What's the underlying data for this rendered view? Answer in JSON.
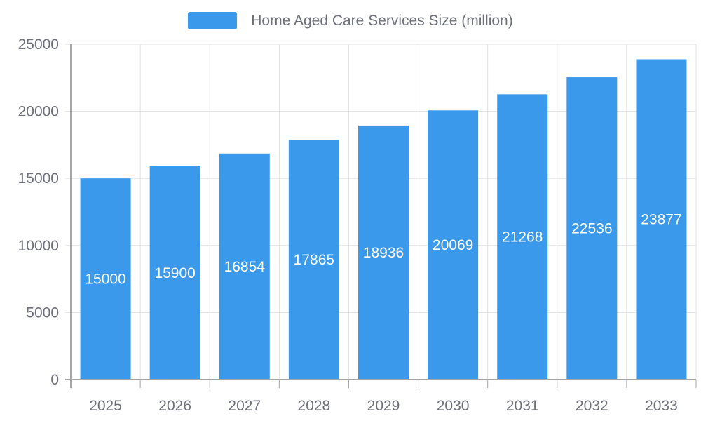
{
  "legend": {
    "label": "Home Aged Care Services Size (million)"
  },
  "colors": {
    "bar": "#3B99EC",
    "axis": "#A6A6A6",
    "grid": "#E0E0E0",
    "tick_text": "#6E7079",
    "value_label": "#FFFFFF",
    "background": "#FFFFFF"
  },
  "chart_data": {
    "type": "bar",
    "title": "Home Aged Care Services Size (million)",
    "categories": [
      "2025",
      "2026",
      "2027",
      "2028",
      "2029",
      "2030",
      "2031",
      "2032",
      "2033"
    ],
    "values": [
      15000,
      15900,
      16854,
      17865,
      18936,
      20069,
      21268,
      22536,
      23877
    ],
    "xlabel": "",
    "ylabel": "",
    "ylim": [
      0,
      25000
    ],
    "yticks": [
      0,
      5000,
      10000,
      15000,
      20000,
      25000
    ],
    "grid": true,
    "legend_position": "top",
    "value_label_position": "inside-center"
  }
}
